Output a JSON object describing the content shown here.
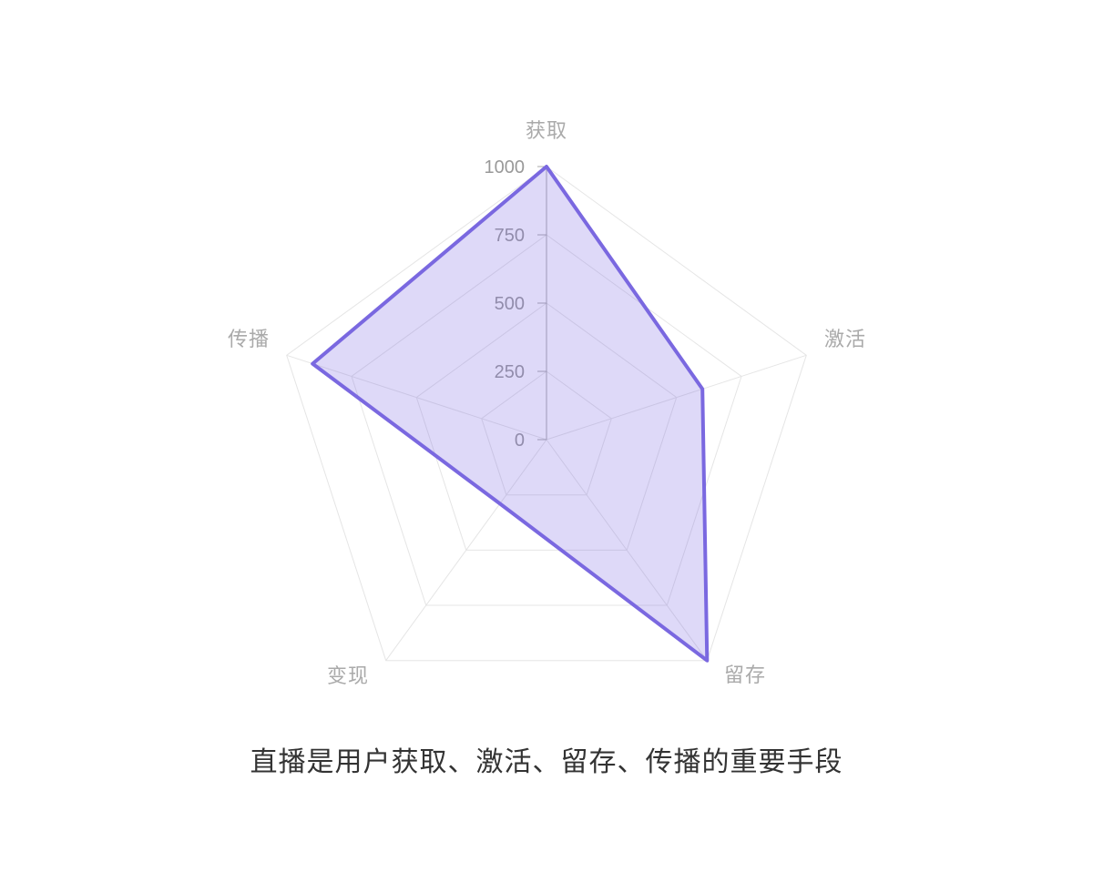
{
  "page": {
    "background": "#ffffff"
  },
  "caption": {
    "text": "直播是用户获取、激活、留存、传播的重要手段",
    "color": "#333333"
  },
  "chart_data": {
    "type": "radar",
    "title": "",
    "indicators": [
      {
        "label": "获取",
        "max": 1000
      },
      {
        "label": "激活",
        "max": 1000
      },
      {
        "label": "留存",
        "max": 1000
      },
      {
        "label": "变现",
        "max": 1000
      },
      {
        "label": "传播",
        "max": 1000
      }
    ],
    "series": [
      {
        "name": "直播",
        "values": [
          1000,
          600,
          1000,
          290,
          900
        ]
      }
    ],
    "radial_ticks": [
      0,
      250,
      500,
      750,
      1000
    ],
    "axis_range": [
      0,
      1000
    ],
    "grid": {
      "shape": "pentagon",
      "levels": 4,
      "spokes": true
    },
    "legend": {
      "visible": false
    },
    "colors": {
      "series_line": "#7A68E0",
      "series_fill": "rgba(123,104,226,0.25)",
      "grid_line": "#E5E5E5",
      "axis_line": "#AAAAAA",
      "tick_label": "#999999",
      "indicator_label": "#AAAAAA"
    }
  }
}
